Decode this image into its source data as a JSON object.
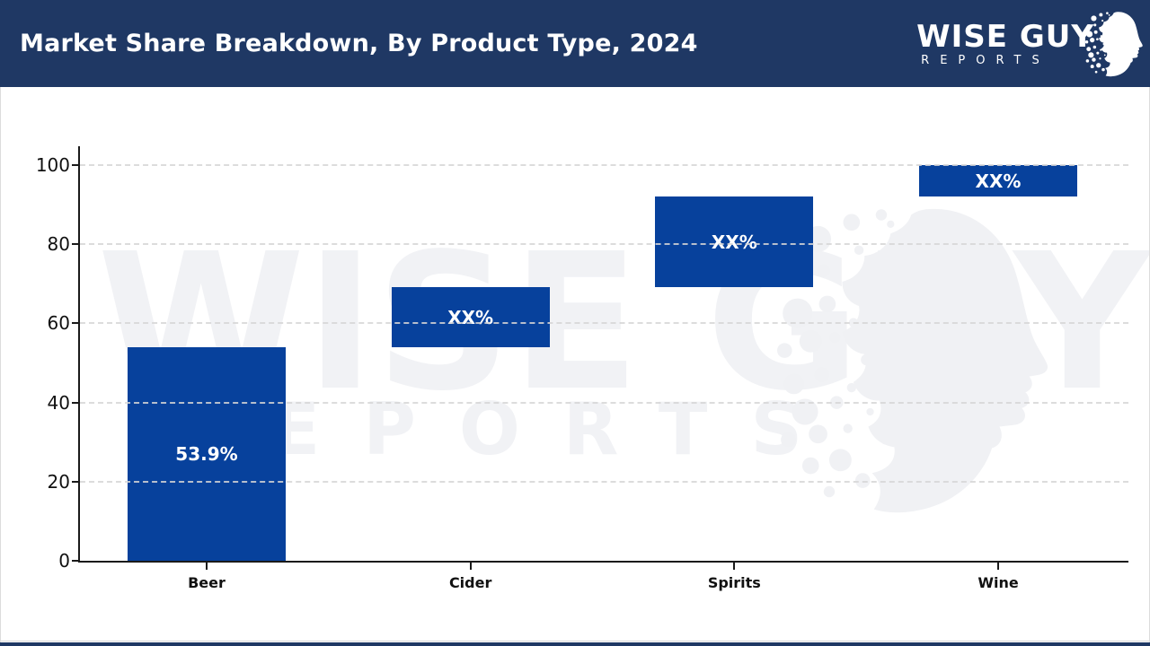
{
  "header": {
    "title": "Market Share Breakdown, By Product Type, 2024",
    "bg_color": "#1f3864",
    "logo": {
      "line1": "WISE GUY",
      "line2": "REPORTS"
    }
  },
  "watermark": {
    "line1": "WISE GUY",
    "line2": "REPORTS"
  },
  "chart_data": {
    "type": "bar",
    "subtype": "waterfall",
    "title": "Market Share Breakdown, By Product Type, 2024",
    "categories": [
      "Beer",
      "Cider",
      "Spirits",
      "Wine"
    ],
    "segments": [
      {
        "category": "Beer",
        "start": 0,
        "end": 53.9,
        "label": "53.9%"
      },
      {
        "category": "Cider",
        "start": 53.9,
        "end": 69.1,
        "label": "XX%"
      },
      {
        "category": "Spirits",
        "start": 69.1,
        "end": 92.0,
        "label": "XX%"
      },
      {
        "category": "Wine",
        "start": 92.0,
        "end": 99.9,
        "label": "XX%"
      }
    ],
    "yticks": [
      0,
      20,
      40,
      60,
      80,
      100
    ],
    "ylim": [
      0,
      105
    ],
    "xlabel": "",
    "ylabel": "",
    "grid": true,
    "legend": "none",
    "bar_color": "#07419c",
    "label_color": "#ffffff",
    "axis_color": "#1a1a1a",
    "grid_color": "#d6d6d6"
  }
}
